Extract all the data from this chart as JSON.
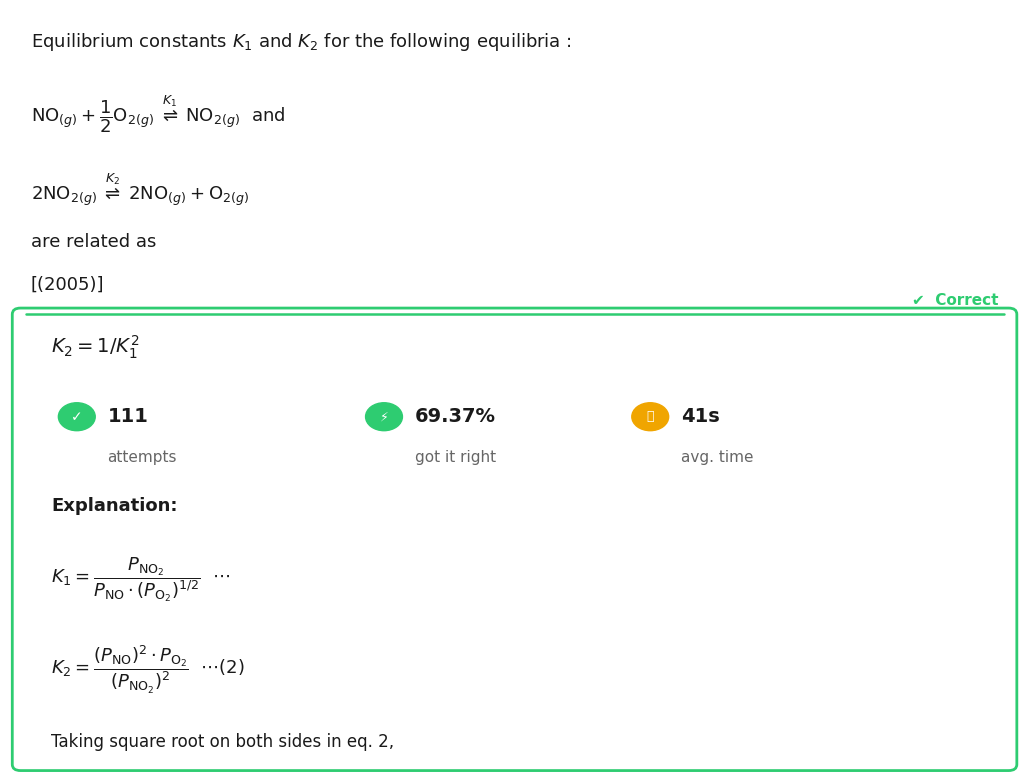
{
  "bg_color": "#ffffff",
  "box_bg": "#ffffff",
  "box_border": "#2ecc71",
  "correct_color": "#2ecc71",
  "text_color": "#1a1a1a",
  "gray_text": "#666666",
  "title_line": "Equilibrium constants $K_1$ and $K_2$ for the following equilibria :",
  "are_related": "are related as",
  "year": "[(2005)]",
  "correct_label": "Correct",
  "attempts_num": "111",
  "attempts_label": "attempts",
  "percent_num": "69.37%",
  "percent_label": "got it right",
  "time_num": "41s",
  "time_label": "avg. time",
  "explanation_title": "Explanation:",
  "taking_sq": "Taking square root on both sides in eq. 2,"
}
